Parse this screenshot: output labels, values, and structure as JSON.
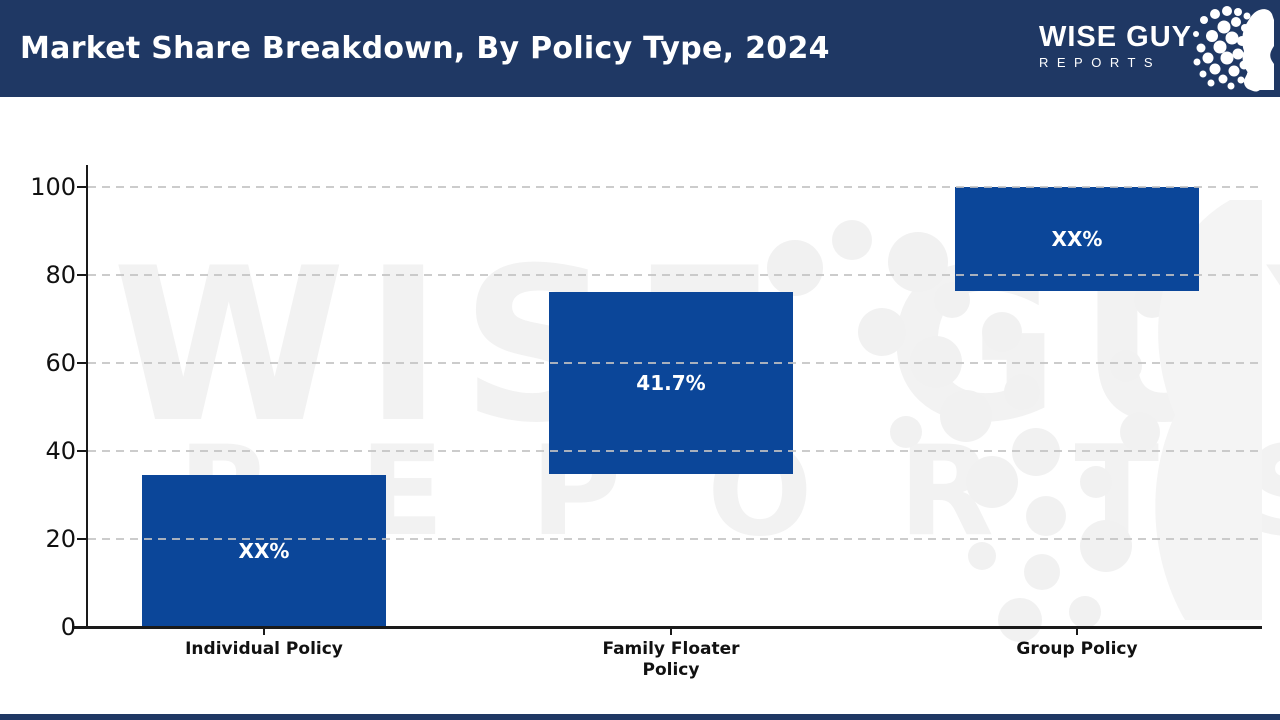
{
  "header": {
    "title": "Market Share Breakdown, By Policy Type, 2024",
    "logo": {
      "line1": "WISE GUY",
      "line2": "REPORTS"
    }
  },
  "watermark": {
    "line1": "WISE GUY",
    "line2": "REPORTS"
  },
  "chart_data": {
    "type": "bar",
    "variant": "waterfall",
    "title": "Market Share Breakdown, By Policy Type, 2024",
    "categories": [
      "Individual Policy",
      "Family Floater Policy",
      "Group Policy"
    ],
    "xtick_labels": [
      "Individual Policy",
      "Family Floater\nPolicy",
      "Group Policy"
    ],
    "segments": [
      {
        "category": "Individual Policy",
        "start": 0,
        "end": 34.5,
        "label": "XX%"
      },
      {
        "category": "Family Floater Policy",
        "start": 34.5,
        "end": 76.2,
        "label": "41.7%"
      },
      {
        "category": "Group Policy",
        "start": 76.2,
        "end": 100,
        "label": "XX%"
      }
    ],
    "yticks": [
      0,
      20,
      40,
      60,
      80,
      100
    ],
    "ylim": [
      0,
      105
    ],
    "xlabel": "",
    "ylabel": "",
    "grid": {
      "horizontal": true,
      "style": "dashed",
      "over_bars": true
    },
    "legend": null,
    "bar_color": "#0b4699"
  },
  "colors": {
    "header_navy": "#1f3864",
    "bar_blue": "#0b4699",
    "grid_gray": "#c3c3c3",
    "axis_black": "#1a1a1a",
    "watermark_gray": "#f2f2f2"
  }
}
